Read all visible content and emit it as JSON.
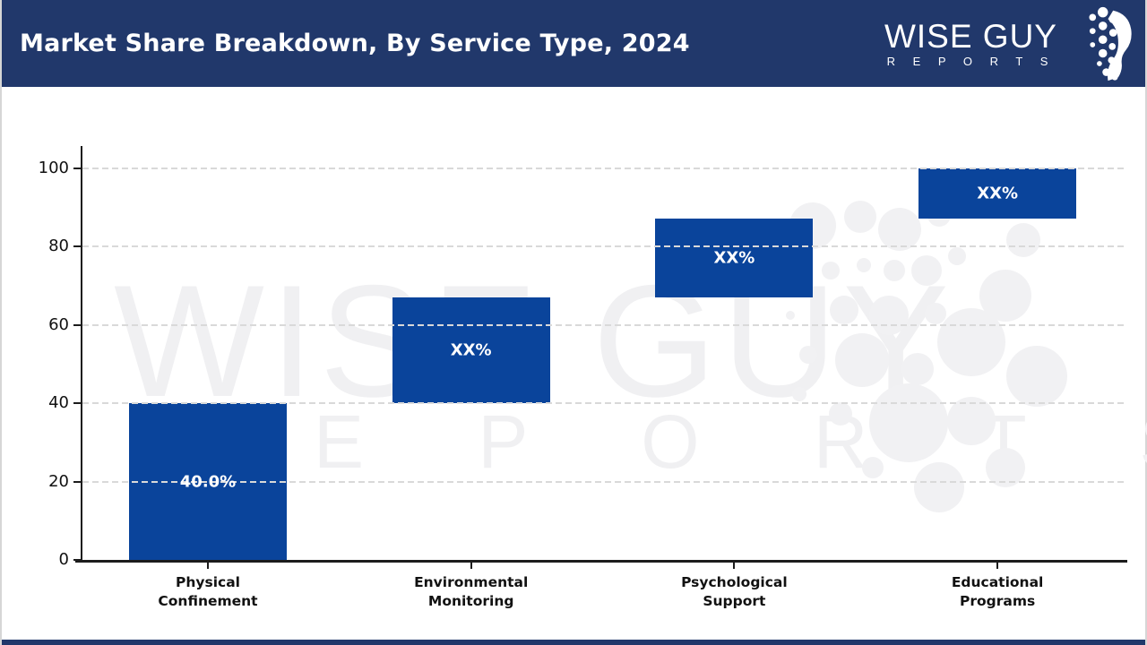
{
  "header": {
    "title": "Market Share Breakdown, By Service Type, 2024",
    "brand": {
      "name": "WISE GUY",
      "subname": "R E P O R T S"
    }
  },
  "watermark": {
    "line1": "WISE GUY",
    "line2": "R E P O R T S"
  },
  "colors": {
    "header_bg": "#21386b",
    "bar": "#0a449b",
    "bar_label_text": "#ffffff",
    "grid": "#d9d9d9",
    "axis": "#1c1c1c",
    "tick_text": "#111111",
    "watermark": "#f0f0f2",
    "page_border": "#d6d6d6"
  },
  "chart_data": {
    "type": "bar",
    "subtype": "waterfall",
    "title": "Market Share Breakdown, By Service Type, 2024",
    "categories": [
      "Physical Confinement",
      "Environmental Monitoring",
      "Psychological Support",
      "Educational Programs"
    ],
    "category_lines": [
      [
        "Physical",
        "Confinement"
      ],
      [
        "Environmental",
        "Monitoring"
      ],
      [
        "Psychological",
        "Support"
      ],
      [
        "Educational",
        "Programs"
      ]
    ],
    "segment_values": [
      40,
      27,
      20,
      13
    ],
    "cumulative_start": [
      0,
      40,
      67,
      87
    ],
    "cumulative_end": [
      40,
      67,
      87,
      100
    ],
    "bar_labels": [
      "40.0%",
      "XX%",
      "XX%",
      "XX%"
    ],
    "unit": "%",
    "xlabel": "",
    "ylabel": "",
    "yticks": [
      0,
      20,
      40,
      60,
      80,
      100
    ],
    "ylim": [
      0,
      105
    ],
    "grid": "horizontal dashed",
    "legend": "none"
  }
}
